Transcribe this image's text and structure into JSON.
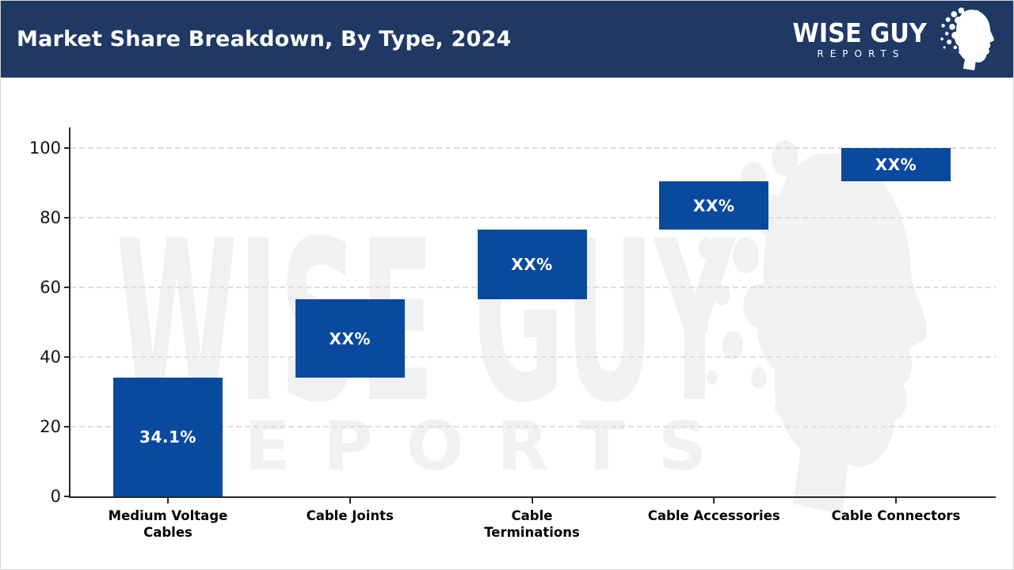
{
  "header": {
    "title": "Market Share Breakdown, By Type, 2024",
    "logo": {
      "name": "WISE GUY",
      "subtitle": "REPORTS"
    }
  },
  "watermark": {
    "line1": "WISE GUY",
    "line2": "REPORTS"
  },
  "chart_data": {
    "type": "bar",
    "subtype": "waterfall",
    "title": "Market Share Breakdown, By Type, 2024",
    "categories": [
      "Medium Voltage Cables",
      "Cable Joints",
      "Cable Terminations",
      "Cable Accessories",
      "Cable Connectors"
    ],
    "segments": [
      {
        "category": "Medium Voltage Cables",
        "from": 0,
        "to": 34.1,
        "label": "34.1%"
      },
      {
        "category": "Cable Joints",
        "from": 34.1,
        "to": 56.5,
        "label": "XX%"
      },
      {
        "category": "Cable Terminations",
        "from": 56.5,
        "to": 76.5,
        "label": "XX%"
      },
      {
        "category": "Cable Accessories",
        "from": 76.5,
        "to": 90.5,
        "label": "XX%"
      },
      {
        "category": "Cable Connectors",
        "from": 90.5,
        "to": 100,
        "label": "XX%"
      }
    ],
    "yticks": [
      0,
      20,
      40,
      60,
      80,
      100
    ],
    "ylim": [
      0,
      106
    ],
    "xlabel": "",
    "ylabel": "",
    "grid": "horizontal-dashed",
    "legend": "none",
    "bar_color": "#0a4a9e",
    "bar_label_color": "#ffffff",
    "axis_color": "#262626",
    "grid_color": "#dedede",
    "header_color": "#1f3864",
    "watermark_color": "#f1f1f3"
  }
}
